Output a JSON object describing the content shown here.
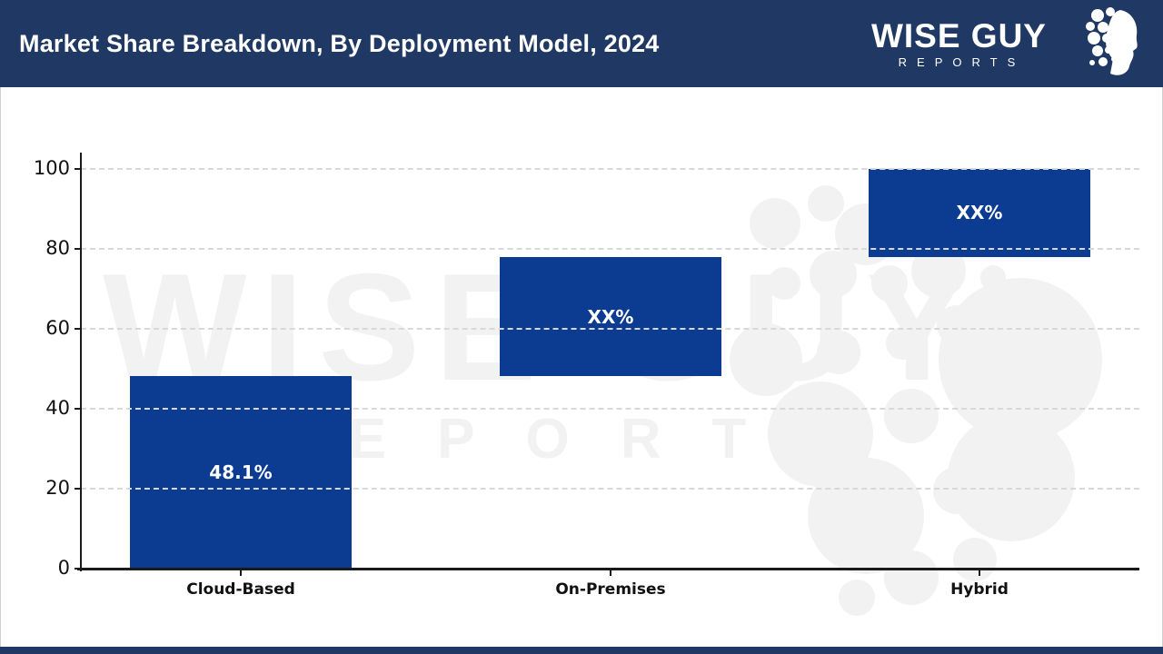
{
  "header": {
    "title": "Market Share Breakdown, By Deployment Model, 2024"
  },
  "logo": {
    "title": "WISE GUY",
    "subtitle": "REPORTS",
    "icon": "face-dots-icon"
  },
  "watermark": {
    "line1": "WISE GUY",
    "line2": "REPORTS",
    "icon": "face-dots-icon"
  },
  "colors": {
    "header_bg": "#1F3864",
    "bar": "#0B3C91",
    "grid": "#D8D8D8",
    "axis": "#1A1A1A",
    "text": "#111111",
    "watermark": "#F2F2F2",
    "bar_label": "#FFFFFF"
  },
  "chart_data": {
    "type": "bar",
    "subtype": "floating-waterfall",
    "title": "Market Share Breakdown, By Deployment Model, 2024",
    "categories": [
      "Cloud-Based",
      "On-Premises",
      "Hybrid"
    ],
    "segments": [
      {
        "category": "Cloud-Based",
        "start": 0,
        "end": 48.1,
        "label": "48.1%"
      },
      {
        "category": "On-Premises",
        "start": 48.1,
        "end": 78,
        "label": "XX%"
      },
      {
        "category": "Hybrid",
        "start": 78,
        "end": 100,
        "label": "XX%"
      }
    ],
    "xlabel": "",
    "ylabel": "",
    "yticks": [
      0,
      20,
      40,
      60,
      80,
      100
    ],
    "ylim": [
      0,
      100
    ],
    "grid": "horizontal-dashed",
    "legend": "none"
  }
}
